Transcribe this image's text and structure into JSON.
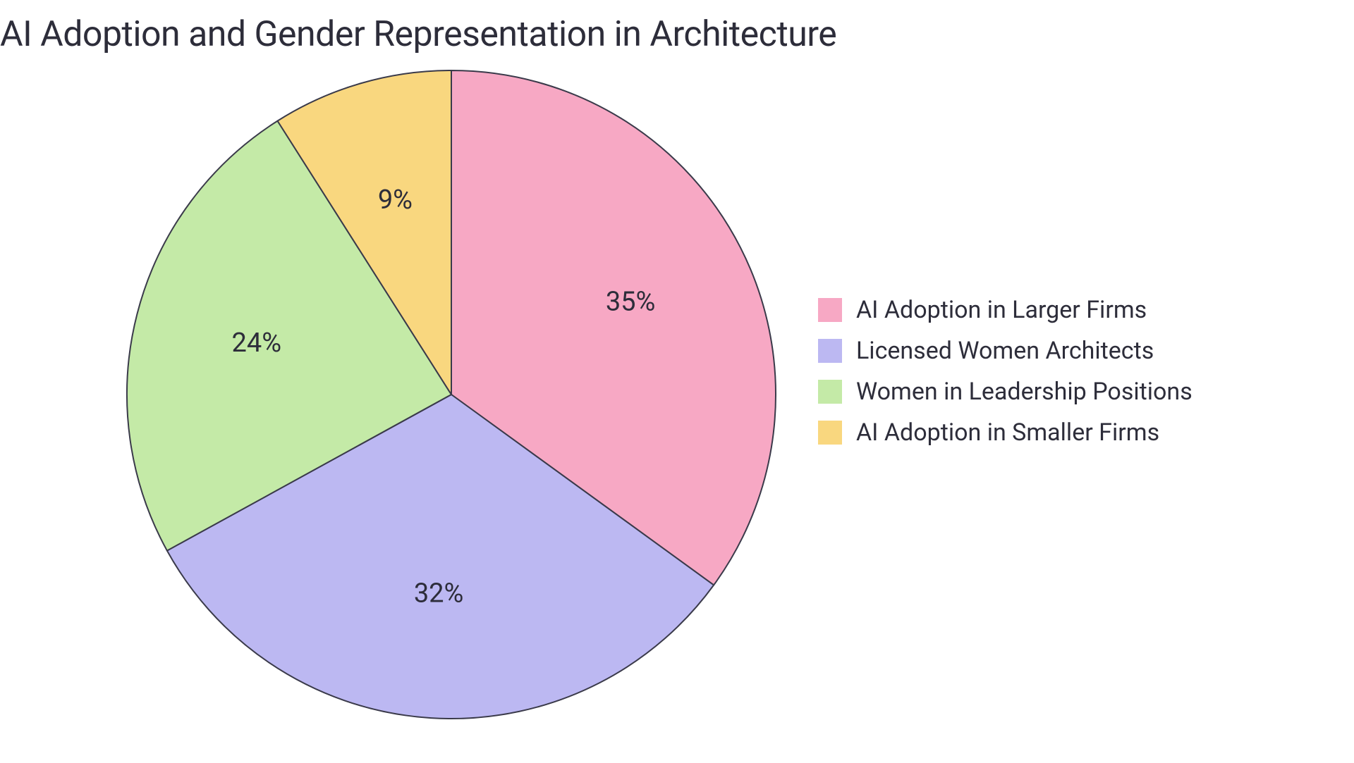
{
  "chart": {
    "type": "pie",
    "title": "AI Adoption and Gender Representation in Architecture",
    "title_fontsize": 50,
    "title_color": "#2d2d3a",
    "background_color": "#ffffff",
    "stroke_color": "#3a3a4a",
    "stroke_width": 2,
    "radius": 460,
    "start_angle_deg": -90,
    "label_fontsize": 38,
    "label_color": "#2d2d3a",
    "legend_fontsize": 34,
    "legend_swatch_size": 34,
    "slices": [
      {
        "label": "AI Adoption in Larger Firms",
        "value": 35,
        "display": "35%",
        "color": "#f7a8c4"
      },
      {
        "label": "Licensed Women Architects",
        "value": 32,
        "display": "32%",
        "color": "#bcb8f2"
      },
      {
        "label": "Women in Leadership Positions",
        "value": 24,
        "display": "24%",
        "color": "#c4eaa7"
      },
      {
        "label": "AI Adoption in Smaller Firms",
        "value": 9,
        "display": "9%",
        "color": "#f9d77f"
      }
    ]
  }
}
